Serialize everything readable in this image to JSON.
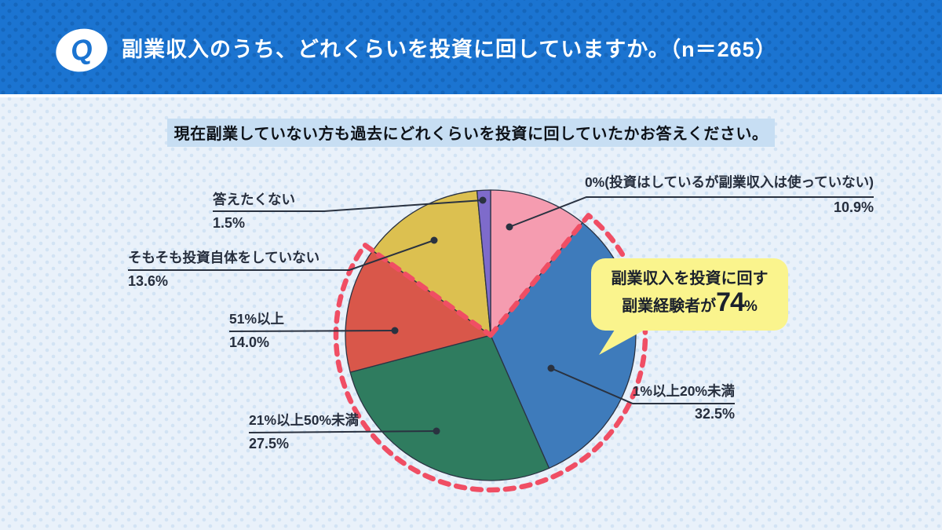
{
  "header": {
    "q_badge": "Q",
    "title": "副業収入のうち、どれくらいを投資に回していますか。（n＝265）"
  },
  "subtitle": "現在副業していない方も過去にどれくらいを投資に回していたかお答えください。",
  "callout": {
    "line1": "副業収入を投資に回す",
    "line2_prefix": "副業経験者が",
    "line2_number": "74",
    "line2_suffix": "%"
  },
  "chart_data": {
    "type": "pie",
    "n_label": "n＝265",
    "start_angle": "top",
    "direction": "clockwise",
    "segments": [
      {
        "label": "0%(投資はしているが副業収入は使っていない)",
        "value": 10.9,
        "display": "10.9%",
        "color": "#F59CB0"
      },
      {
        "label": "1%以上20%未満",
        "value": 32.5,
        "display": "32.5%",
        "color": "#3E7BBB"
      },
      {
        "label": "21%以上50%未満",
        "value": 27.5,
        "display": "27.5%",
        "color": "#2F7C5F"
      },
      {
        "label": "51%以上",
        "value": 14.0,
        "display": "14.0%",
        "color": "#D9574A"
      },
      {
        "label": "そもそも投資自体をしていない",
        "value": 13.6,
        "display": "13.6%",
        "color": "#DCC050"
      },
      {
        "label": "答えたくない",
        "value": 1.5,
        "display": "1.5%",
        "color": "#7E6BCB"
      }
    ],
    "highlight": {
      "note": "副業収入を投資に回す副業経験者が74%",
      "value": 74,
      "segments_start_index": 1,
      "segments_end_index": 3,
      "style": "dashed-outline",
      "color": "#F04E64"
    }
  },
  "colors": {
    "header_bg": "#1B74D1",
    "body_bg": "#E9F1FA",
    "subtitle_highlight": "#C7DEF3",
    "callout_bg": "#FAF48D",
    "leader_line": "#2A3240",
    "slice_outline": "#2B3343"
  }
}
